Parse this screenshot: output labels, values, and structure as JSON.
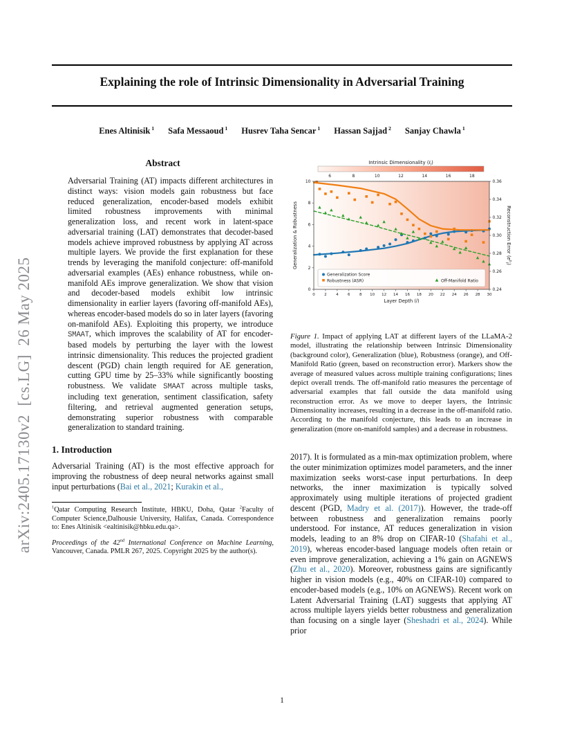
{
  "watermark": "arXiv:2405.17130v2  [cs.LG]  26 May 2025",
  "title": "Explaining the role of Intrinsic Dimensionality in Adversarial Training",
  "authors": [
    {
      "name": "Enes Altinisik",
      "sup": "1"
    },
    {
      "name": "Safa Messaoud",
      "sup": "1"
    },
    {
      "name": "Husrev Taha Sencar",
      "sup": "1"
    },
    {
      "name": "Hassan Sajjad",
      "sup": "2"
    },
    {
      "name": "Sanjay Chawla",
      "sup": "1"
    }
  ],
  "abstract": {
    "heading": "Abstract",
    "runs": [
      {
        "t": "Adversarial Training (AT) impacts different architectures in distinct ways: vision models gain robustness but face reduced generalization, encoder-based models exhibit limited robustness improvements with minimal generalization loss, and recent work in latent-space adversarial training (LAT) demonstrates that decoder-based models achieve improved robustness by applying AT across multiple layers. We provide the first explanation for these trends by leveraging the manifold conjecture: off-manifold adversarial examples (AEs) enhance robustness, while on-manifold AEs improve generalization. We show that vision and decoder-based models exhibit low intrinsic dimensionality in earlier layers (favoring off-manifold AEs), whereas encoder-based models do so in later layers (favoring on-manifold AEs). Exploiting this property, we introduce ",
        "style": "plain"
      },
      {
        "t": "SMAAT",
        "style": "tt"
      },
      {
        "t": ", which improves the scalability of AT for encoder-based models by perturbing the layer with the lowest intrinsic dimensionality. This reduces the projected gradient descent (PGD) chain length required for AE generation, cutting GPU time by 25–33% while significantly boosting robustness. We validate ",
        "style": "plain"
      },
      {
        "t": "SMAAT",
        "style": "tt"
      },
      {
        "t": " across multiple tasks, including text generation, sentiment classification, safety filtering, and retrieval augmented generation setups, demonstrating superior robustness with comparable generalization to standard training.",
        "style": "plain"
      }
    ]
  },
  "introduction": {
    "heading": "1. Introduction",
    "runs": [
      {
        "t": "Adversarial Training (AT) is the most effective approach for improving the robustness of deep neural networks against small input perturbations (",
        "style": "plain"
      },
      {
        "t": "Bai et al., 2021",
        "style": "cite"
      },
      {
        "t": "; ",
        "style": "plain"
      },
      {
        "t": "Kurakin et al.,",
        "style": "cite"
      }
    ]
  },
  "footnote": {
    "runs": [
      {
        "t": "1",
        "style": "sup"
      },
      {
        "t": "Qatar Computing Research Institute, HBKU, Doha, Qatar ",
        "style": "plain"
      },
      {
        "t": "2",
        "style": "sup"
      },
      {
        "t": "Faculty of Computer Science,Dalhousie University, Halifax, Canada. Correspondence to: Enes Altinisik <ealtinisik@hbku.edu.qa>.",
        "style": "plain"
      }
    ]
  },
  "proceedings": {
    "runs": [
      {
        "t": "Proceedings of the 42",
        "style": "italic"
      },
      {
        "t": "nd",
        "style": "supit"
      },
      {
        "t": " International Conference on Machine Learning",
        "style": "italic"
      },
      {
        "t": ", Vancouver, Canada. PMLR 267, 2025. Copyright 2025 by the author(s).",
        "style": "plain"
      }
    ]
  },
  "figure": {
    "caption_runs": [
      {
        "t": "Figure 1.",
        "style": "italic"
      },
      {
        "t": " Impact of applying LAT at different layers of the LLaMA-2 model, illustrating the relationship between Intrinsic Dimensionality (background color), Generalization (blue), Robustness (orange), and Off-Manifold Ratio (green, based on reconstruction error). Markers show the average of measured values across multiple training configurations; lines depict overall trends. The off-manifold ratio measures the percentage of adversarial examples that fall outside the data manifold using reconstruction error. As we move to deeper layers, the Intrinsic Dimensionality increases, resulting in a decrease in the off-manifold ratio. According to the manifold conjecture, this leads to an increase in generalization (more on-manifold samples) and a decrease in robustness.",
        "style": "plain"
      }
    ]
  },
  "continuation": {
    "runs": [
      {
        "t": "2017). It is formulated as a min-max optimization problem, where the outer minimization optimizes model parameters, and the inner maximization seeks worst-case input perturbations. In deep networks, the inner maximization is typically solved approximately using multiple iterations of projected gradient descent (PGD, ",
        "style": "plain"
      },
      {
        "t": "Madry et al. (2017)",
        "style": "cite"
      },
      {
        "t": "). However, the trade-off between robustness and generalization remains poorly understood. For instance, AT reduces generalization in vision models, leading to an 8% drop on CIFAR-10 (",
        "style": "plain"
      },
      {
        "t": "Shafahi et al., 2019",
        "style": "cite"
      },
      {
        "t": "), whereas encoder-based language models often retain or even improve generalization, achieving a 1% gain on AGNEWS (",
        "style": "plain"
      },
      {
        "t": "Zhu et al., 2020",
        "style": "cite"
      },
      {
        "t": "). Moreover, robustness gains are significantly higher in vision models (e.g., 40% on CIFAR-10) compared to encoder-based models (e.g., 10% on AGNEWS). Recent work on Latent Adversarial Training (LAT) suggests that applying AT across multiple layers yields better robustness and generalization than focusing on a single layer (",
        "style": "plain"
      },
      {
        "t": "Sheshadri et al., 2024",
        "style": "cite"
      },
      {
        "t": "). While prior",
        "style": "plain"
      }
    ]
  },
  "page_number": "1",
  "chart_data": {
    "type": "scatter",
    "title_parts": [
      {
        "t": "Intrinsic Dimensionality ("
      },
      {
        "t": "I",
        "it": true
      },
      {
        "t": "l",
        "sub": true,
        "it": true
      },
      {
        "t": ")"
      }
    ],
    "colorbar_ticks": [
      6,
      8,
      10,
      12,
      14,
      16,
      18
    ],
    "colorbar_range": [
      5,
      19
    ],
    "colorbar_colors": [
      "#fff5f0",
      "#fcab8f",
      "#e25d43"
    ],
    "bg_colors": [
      "#fffdfb",
      "#fdeae2",
      "#f4b8a5"
    ],
    "xlabel_parts": [
      {
        "t": "Layer Depth ("
      },
      {
        "t": "l",
        "it": true
      },
      {
        "t": ")"
      }
    ],
    "ylabel_left": "Generalization & Robustness",
    "ylabel_right_parts": [
      {
        "t": "Reconstruction Error ("
      },
      {
        "t": "e",
        "it": true
      },
      {
        "t": "h",
        "sup": true,
        "it": true
      },
      {
        "t": "l",
        "sub": true,
        "it": true
      },
      {
        "t": ")"
      }
    ],
    "xlim": [
      0,
      30
    ],
    "ylim_left": [
      0,
      10
    ],
    "ylim_right": [
      0.24,
      0.36
    ],
    "x_ticks": [
      0,
      2,
      4,
      6,
      8,
      10,
      12,
      14,
      16,
      18,
      20,
      22,
      24,
      26,
      28,
      30
    ],
    "y_ticks_left": [
      0,
      2,
      4,
      6,
      8,
      10
    ],
    "y_ticks_right": [
      0.24,
      0.26,
      0.28,
      0.3,
      0.32,
      0.34,
      0.36
    ],
    "series": [
      {
        "name": "Generalization Score",
        "color": "#1f77b4",
        "marker": "circle",
        "axis": "left",
        "dashed": false,
        "points": [
          [
            1,
            3.25
          ],
          [
            2,
            3.05
          ],
          [
            3,
            3.3
          ],
          [
            5,
            3.45
          ],
          [
            6,
            3.2
          ],
          [
            8,
            3.6
          ],
          [
            9,
            3.75
          ],
          [
            11,
            3.9
          ],
          [
            12,
            4.05
          ],
          [
            13,
            4.2
          ],
          [
            14,
            4.6
          ],
          [
            15,
            5.05
          ],
          [
            16,
            4.35
          ],
          [
            17,
            4.5
          ],
          [
            19,
            4.75
          ],
          [
            20,
            5.15
          ],
          [
            21,
            4.95
          ],
          [
            23,
            5.1
          ],
          [
            24,
            5.35
          ],
          [
            26,
            5.3
          ],
          [
            27,
            5.45
          ],
          [
            29,
            5.4
          ],
          [
            30,
            5.6
          ]
        ],
        "trend": [
          [
            0,
            3.2
          ],
          [
            4,
            3.35
          ],
          [
            8,
            3.55
          ],
          [
            12,
            3.8
          ],
          [
            14,
            4.0
          ],
          [
            16,
            4.25
          ],
          [
            18,
            4.6
          ],
          [
            20,
            4.95
          ],
          [
            22,
            5.2
          ],
          [
            24,
            5.35
          ],
          [
            27,
            5.45
          ],
          [
            30,
            5.5
          ]
        ]
      },
      {
        "name": "Robustness (ASR)",
        "color": "#f07e12",
        "marker": "square",
        "axis": "left",
        "dashed": false,
        "points": [
          [
            0.5,
            9.95
          ],
          [
            1,
            9.3
          ],
          [
            2,
            8.85
          ],
          [
            3,
            9.05
          ],
          [
            4,
            8.5
          ],
          [
            6,
            8.9
          ],
          [
            7,
            8.3
          ],
          [
            9,
            8.6
          ],
          [
            10,
            8.05
          ],
          [
            11,
            8.75
          ],
          [
            13,
            7.9
          ],
          [
            14,
            8.1
          ],
          [
            15,
            7.0
          ],
          [
            16,
            6.45
          ],
          [
            17,
            5.95
          ],
          [
            18,
            5.6
          ],
          [
            19,
            5.15
          ],
          [
            20,
            4.9
          ],
          [
            21,
            5.35
          ],
          [
            23,
            4.65
          ],
          [
            24,
            5.6
          ],
          [
            26,
            4.45
          ],
          [
            27,
            5.05
          ],
          [
            29,
            4.35
          ],
          [
            30,
            6.3
          ]
        ],
        "trend": [
          [
            0,
            9.9
          ],
          [
            4,
            9.65
          ],
          [
            8,
            9.35
          ],
          [
            12,
            8.85
          ],
          [
            14,
            8.35
          ],
          [
            16,
            7.45
          ],
          [
            18,
            6.5
          ],
          [
            20,
            5.9
          ],
          [
            22,
            5.6
          ],
          [
            25,
            5.5
          ],
          [
            30,
            5.5
          ]
        ]
      },
      {
        "name": "Off-Manifold Ratio",
        "color": "#2ca02c",
        "marker": "triangle",
        "axis": "right",
        "dashed": true,
        "points": [
          [
            1,
            0.331
          ],
          [
            2,
            0.325
          ],
          [
            3,
            0.328
          ],
          [
            5,
            0.322
          ],
          [
            6,
            0.318
          ],
          [
            8,
            0.32
          ],
          [
            9,
            0.314
          ],
          [
            11,
            0.311
          ],
          [
            12,
            0.315
          ],
          [
            14,
            0.307
          ],
          [
            15,
            0.302
          ],
          [
            16,
            0.297
          ],
          [
            17,
            0.304
          ],
          [
            18,
            0.296
          ],
          [
            20,
            0.292
          ],
          [
            21,
            0.288
          ],
          [
            22,
            0.293
          ],
          [
            24,
            0.285
          ],
          [
            25,
            0.281
          ],
          [
            26,
            0.286
          ],
          [
            28,
            0.275
          ],
          [
            29,
            0.271
          ],
          [
            30,
            0.268
          ]
        ],
        "trend": [
          [
            0,
            0.327
          ],
          [
            5,
            0.319
          ],
          [
            10,
            0.311
          ],
          [
            15,
            0.302
          ],
          [
            20,
            0.294
          ],
          [
            25,
            0.285
          ],
          [
            30,
            0.277
          ]
        ]
      }
    ]
  }
}
